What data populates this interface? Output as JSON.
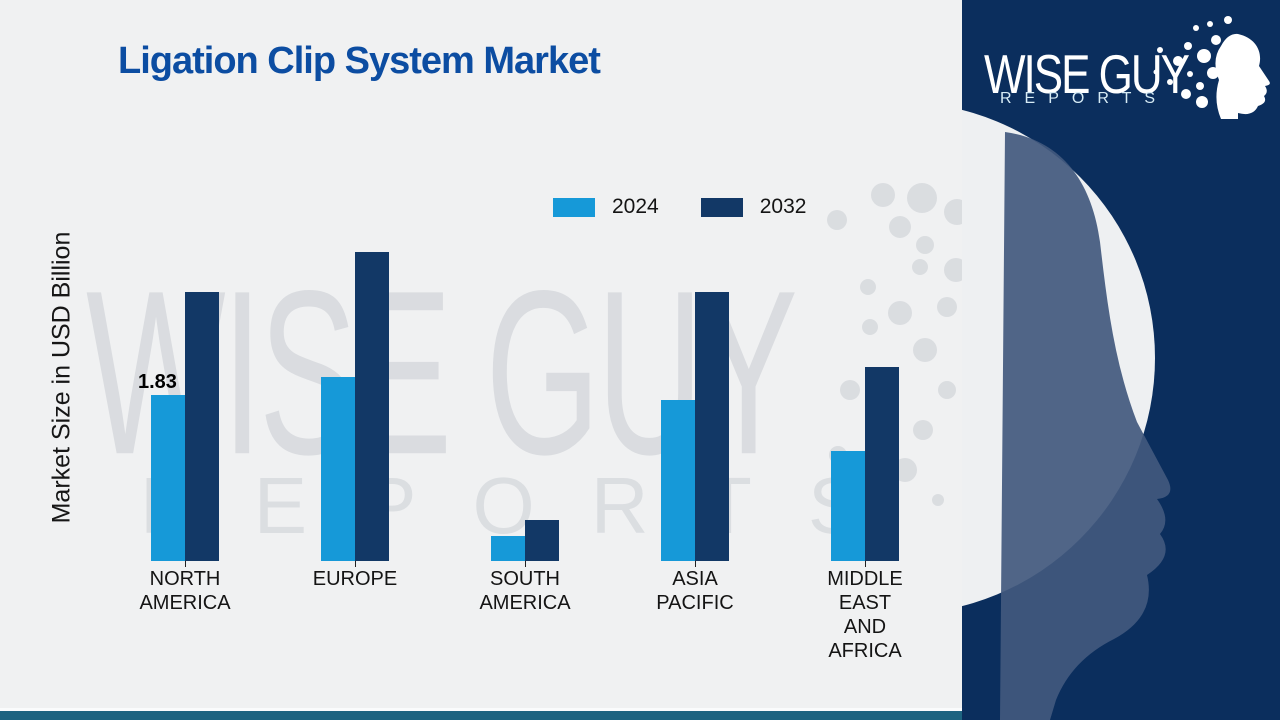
{
  "page": {
    "background": "#f0f1f2",
    "bottom_strip_color": "#1d6380"
  },
  "title": {
    "text": "Ligation Clip System Market",
    "color": "#0c4da2"
  },
  "brand": {
    "name": "WISE GUY",
    "sub": "REPORTS",
    "panel_color": "#0b2e5d"
  },
  "watermark": {
    "name": "WISE GUY",
    "sub": "REPORTS"
  },
  "legend": {
    "items": [
      {
        "label": "2024",
        "color": "#1699d8"
      },
      {
        "label": "2032",
        "color": "#123866"
      }
    ]
  },
  "chart_data": {
    "type": "bar",
    "title": "Ligation Clip System Market",
    "xlabel": "",
    "ylabel": "Market Size in USD Billion",
    "categories": [
      "NORTH AMERICA",
      "EUROPE",
      "SOUTH AMERICA",
      "ASIA PACIFIC",
      "MIDDLE EAST AND AFRICA"
    ],
    "category_lines": [
      [
        "NORTH",
        "AMERICA"
      ],
      [
        "EUROPE"
      ],
      [
        "SOUTH",
        "AMERICA"
      ],
      [
        "ASIA",
        "PACIFIC"
      ],
      [
        "MIDDLE",
        "EAST",
        "AND",
        "AFRICA"
      ]
    ],
    "series": [
      {
        "name": "2024",
        "color": "#1699d8",
        "values": [
          1.83,
          2.03,
          0.28,
          1.78,
          1.21
        ]
      },
      {
        "name": "2032",
        "color": "#123866",
        "values": [
          2.97,
          3.41,
          0.45,
          2.97,
          2.14
        ]
      }
    ],
    "data_labels": [
      {
        "series": "2024",
        "category": "NORTH AMERICA",
        "text": "1.83"
      }
    ],
    "ylim": [
      0,
      3.8
    ],
    "grid": false,
    "legend_position": "top-center",
    "note": "only the 1.83 value is printed on the chart; other values estimated from bar heights"
  }
}
